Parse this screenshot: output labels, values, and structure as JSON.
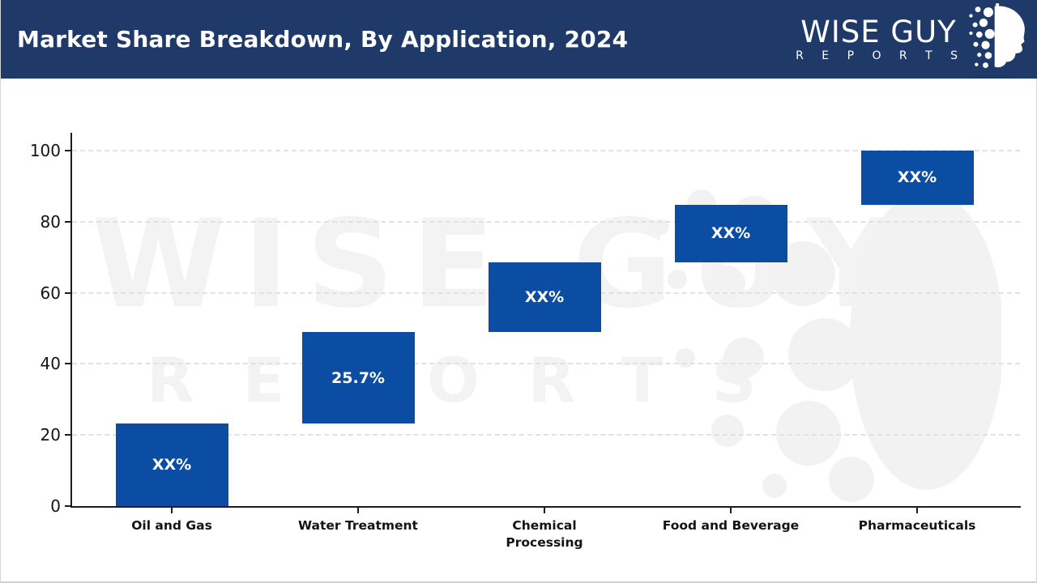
{
  "header": {
    "title": "Market Share Breakdown, By Application, 2024",
    "background_color": "#1F3A68",
    "logo": {
      "line1": "WISE GUY",
      "line2": "R E P O R T S"
    }
  },
  "watermark": {
    "line1": "WISE GUY",
    "line2": "REPORTS"
  },
  "chart_data": {
    "type": "bar",
    "subtype": "floating-segment-bars (waterfall style)",
    "title": "Market Share Breakdown, By Application, 2024",
    "xlabel": "",
    "ylabel": "",
    "ylim": [
      0,
      100
    ],
    "y_ticks": [
      0,
      20,
      40,
      60,
      80,
      100
    ],
    "grid": "horizontal dashed",
    "grid_color": "#e1e1e1",
    "bar_color": "#0B4DA2",
    "bar_label_color": "#ffffff",
    "categories": [
      "Oil and Gas",
      "Water Treatment",
      "Chemical\nProcessing",
      "Food and Beverage",
      "Pharmaceuticals"
    ],
    "segments": [
      {
        "category": "Oil and Gas",
        "start": 0,
        "end": 23.2,
        "value": 23.2,
        "label": "XX%"
      },
      {
        "category": "Water Treatment",
        "start": 23.2,
        "end": 48.9,
        "value": 25.7,
        "label": "25.7%"
      },
      {
        "category": "Chemical Processing",
        "start": 48.9,
        "end": 68.6,
        "value": 19.7,
        "label": "XX%"
      },
      {
        "category": "Food and Beverage",
        "start": 68.6,
        "end": 84.8,
        "value": 16.2,
        "label": "XX%"
      },
      {
        "category": "Pharmaceuticals",
        "start": 84.8,
        "end": 100,
        "value": 15.2,
        "label": "XX%"
      }
    ]
  }
}
